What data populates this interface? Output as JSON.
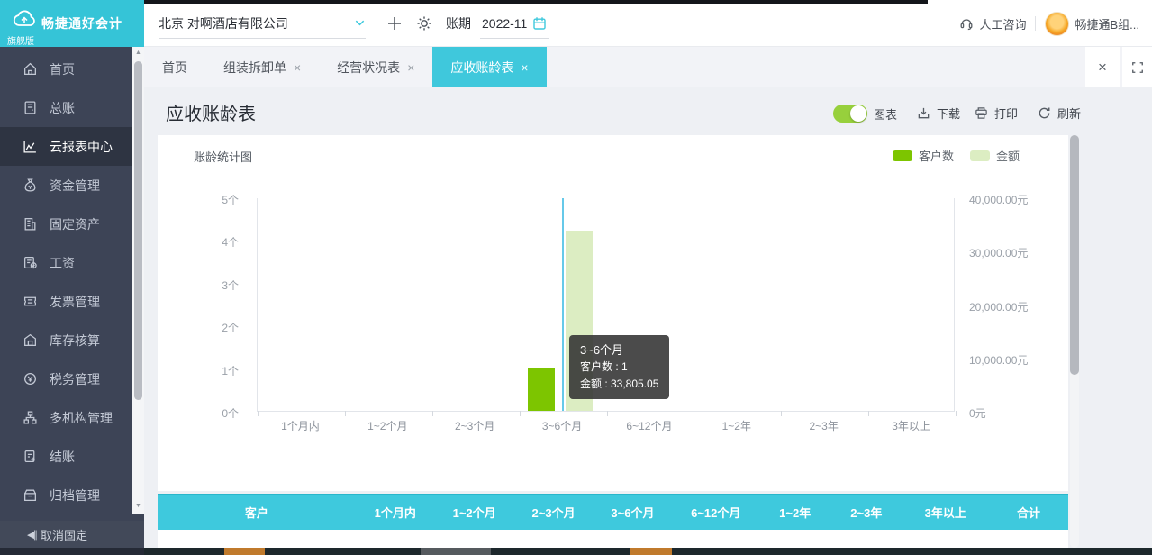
{
  "header": {
    "logo_title": "畅捷通好会计",
    "logo_badge": "旗舰版",
    "company": "北京 对啊酒店有限公司",
    "period_label": "账期",
    "period_value": "2022-11",
    "support_label": "人工咨询",
    "user_label": "畅捷通B组..."
  },
  "sidebar": {
    "items": [
      {
        "icon": "home",
        "label": "首页",
        "active": false
      },
      {
        "icon": "ledger",
        "label": "总账",
        "active": false
      },
      {
        "icon": "report",
        "label": "云报表中心",
        "active": true
      },
      {
        "icon": "funds",
        "label": "资金管理",
        "active": false
      },
      {
        "icon": "asset",
        "label": "固定资产",
        "active": false
      },
      {
        "icon": "salary",
        "label": "工资",
        "active": false
      },
      {
        "icon": "invoice",
        "label": "发票管理",
        "active": false
      },
      {
        "icon": "inventory",
        "label": "库存核算",
        "active": false
      },
      {
        "icon": "tax",
        "label": "税务管理",
        "active": false
      },
      {
        "icon": "org",
        "label": "多机构管理",
        "active": false
      },
      {
        "icon": "closing",
        "label": "结账",
        "active": false
      },
      {
        "icon": "archive",
        "label": "归档管理",
        "active": false
      }
    ],
    "unpin_label": "取消固定"
  },
  "tabs": {
    "items": [
      {
        "label": "首页",
        "closable": false,
        "active": false
      },
      {
        "label": "组装拆卸单",
        "closable": true,
        "active": false
      },
      {
        "label": "经营状况表",
        "closable": true,
        "active": false
      },
      {
        "label": "应收账龄表",
        "closable": true,
        "active": true
      }
    ]
  },
  "page": {
    "title": "应收账龄表",
    "chart_toggle_label": "图表",
    "chart_toggle_on": true,
    "download_label": "下载",
    "print_label": "打印",
    "refresh_label": "刷新"
  },
  "chart_data": {
    "type": "bar",
    "title": "账龄统计图",
    "categories": [
      "1个月内",
      "1~2个月",
      "2~3个月",
      "3~6个月",
      "6~12个月",
      "1~2年",
      "2~3年",
      "3年以上"
    ],
    "series": [
      {
        "name": "客户数",
        "color": "#7dc500",
        "axis": "left",
        "unit": "个",
        "values": [
          0,
          0,
          0,
          1,
          0,
          0,
          0,
          0
        ]
      },
      {
        "name": "金额",
        "color": "#dcedc2",
        "axis": "right",
        "unit": "元",
        "values": [
          0,
          0,
          0,
          33805.05,
          0,
          0,
          0,
          0
        ]
      }
    ],
    "left_axis": {
      "ticks": [
        "5个",
        "4个",
        "3个",
        "2个",
        "1个",
        "0个"
      ],
      "max": 5,
      "min": 0
    },
    "right_axis": {
      "ticks": [
        "40,000.00元",
        "30,000.00元",
        "20,000.00元",
        "10,000.00元",
        "0元"
      ],
      "max": 40000,
      "min": 0
    },
    "legend_position": "top-right",
    "grid": false,
    "tooltip": {
      "category_index": 3,
      "title": "3~6个月",
      "customer_line": "客户数 : 1",
      "amount_line": "金额 : 33,805.05"
    }
  },
  "table": {
    "columns": [
      "客户",
      "1个月内",
      "1~2个月",
      "2~3个月",
      "3~6个月",
      "6~12个月",
      "1~2年",
      "2~3年",
      "3年以上",
      "合计"
    ]
  },
  "colors": {
    "brand_cyan": "#3ec9dd",
    "sidebar_bg": "#3d4456",
    "toggle_green": "#97d03c",
    "bar_customer": "#7dc500",
    "bar_amount": "#dcedc2",
    "axis_pointer": "#66c9e9"
  }
}
